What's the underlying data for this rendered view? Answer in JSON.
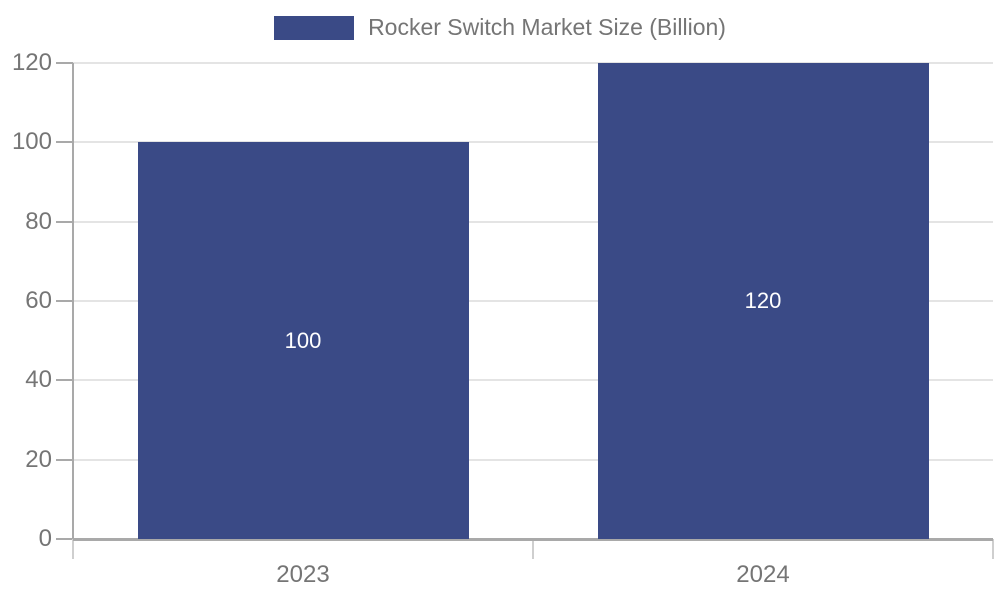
{
  "chart_data": {
    "type": "bar",
    "title": "",
    "xlabel": "",
    "ylabel": "",
    "categories": [
      "2023",
      "2024"
    ],
    "series": [
      {
        "name": "Rocker Switch Market Size (Billion)",
        "values": [
          100,
          120
        ],
        "color": "#3a4a86"
      }
    ],
    "bar_labels": [
      "100",
      "120"
    ],
    "ylim": [
      0,
      120
    ],
    "yticks": [
      0,
      20,
      40,
      60,
      80,
      100,
      120
    ],
    "grid": true,
    "legend_position": "top"
  },
  "colors": {
    "bar": "#3a4a86",
    "grid": "#e4e4e4",
    "axis": "#a9a9a9",
    "x_tick": "#cfcfcf",
    "y_tick": "#a9a9a9",
    "tick_label": "#757575",
    "bar_label": "#ffffff",
    "background": "#ffffff"
  }
}
